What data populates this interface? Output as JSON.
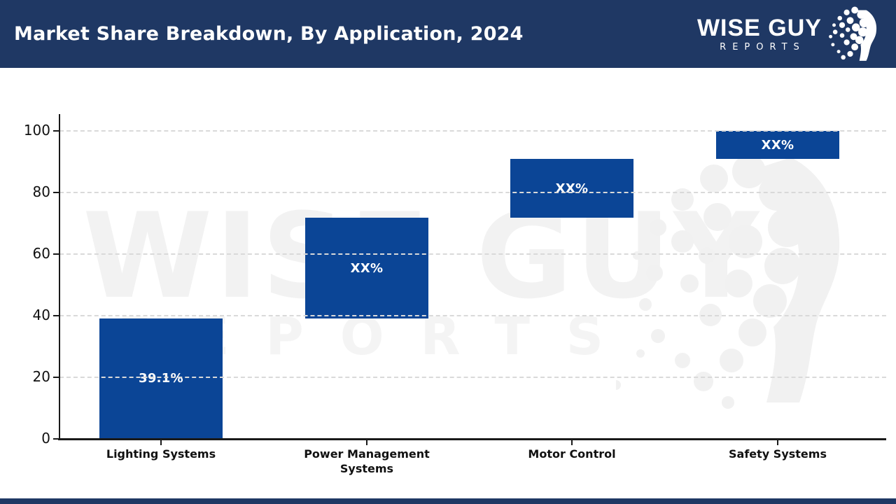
{
  "header": {
    "title": "Market Share Breakdown, By Application, 2024",
    "logo": {
      "line1": "WISE GUY",
      "line2": "REPORTS"
    }
  },
  "watermark": {
    "line1": "WISE GUY",
    "line2": "REPORTS"
  },
  "colors": {
    "header_bg": "#1f3864",
    "footer_bg": "#1f3864",
    "bar": "#0b4596",
    "grid": "#d9d9d9",
    "axis": "#1a1a1a",
    "text": "#111111",
    "value_text": "#ffffff"
  },
  "chart_data": {
    "type": "bar",
    "subtype": "floating-segment progression (waterfall-style market share)",
    "title": "Market Share Breakdown, By Application, 2024",
    "categories": [
      "Lighting Systems",
      "Power Management Systems",
      "Motor Control",
      "Safety Systems"
    ],
    "segments": [
      {
        "category": "Lighting Systems",
        "start": 0,
        "end": 39.1,
        "label": "39.1%"
      },
      {
        "category": "Power Management Systems",
        "start": 39.1,
        "end": 71.8,
        "label": "XX%"
      },
      {
        "category": "Motor Control",
        "start": 71.8,
        "end": 90.9,
        "label": "XX%"
      },
      {
        "category": "Safety Systems",
        "start": 90.9,
        "end": 100,
        "label": "XX%"
      }
    ],
    "xlabel": "",
    "ylabel": "",
    "yticks": [
      0,
      20,
      40,
      60,
      80,
      100
    ],
    "ylim": [
      0,
      105
    ],
    "grid": "horizontal dashed",
    "legend": "none",
    "bar_color": "#0b4596"
  }
}
